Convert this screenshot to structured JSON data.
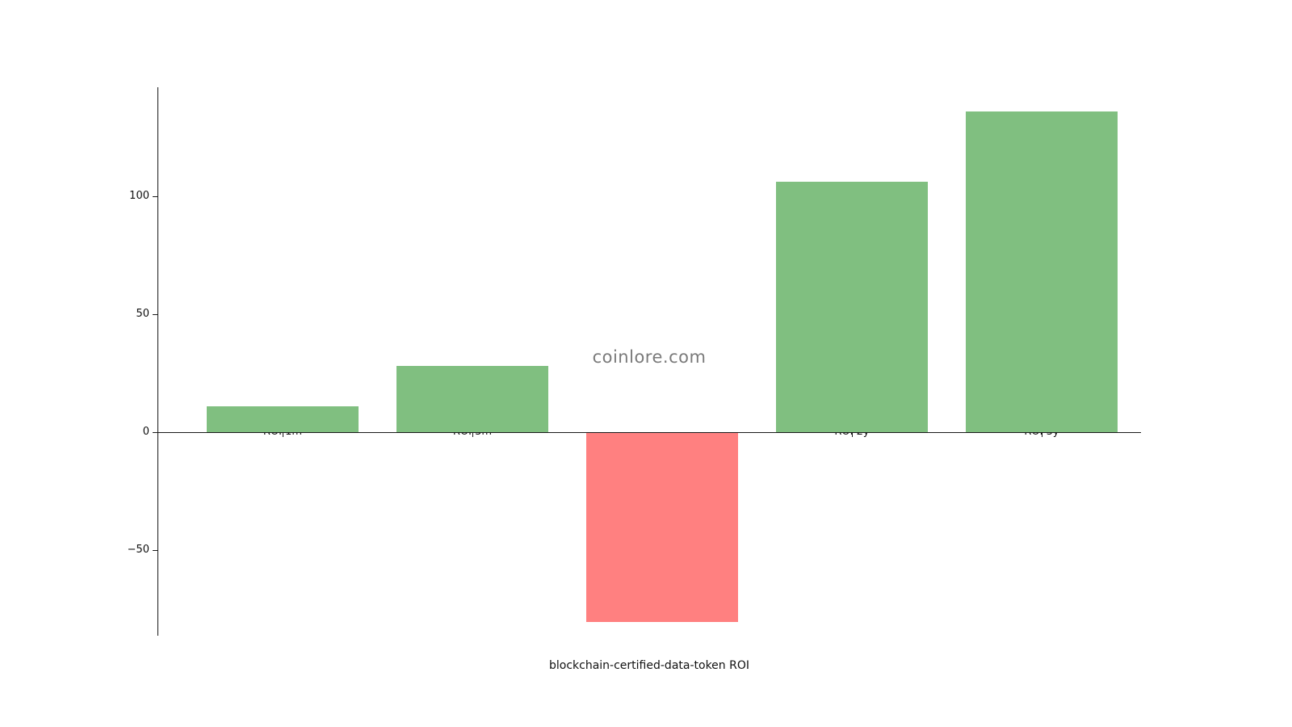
{
  "watermark": {
    "text": "coinlore.com",
    "color": "#7a7a7a"
  },
  "chart_data": {
    "type": "bar",
    "title": "blockchain-certified-data-token ROI",
    "categories": [
      "ROI 1m",
      "ROI 3m",
      "",
      "ROI 2y",
      "ROI 3y"
    ],
    "values": [
      11,
      28,
      -80,
      106,
      136
    ],
    "bar_colors": [
      "#80bf80",
      "#80bf80",
      "#ff8080",
      "#80bf80",
      "#80bf80"
    ],
    "positive_color": "#80bf80",
    "negative_color": "#ff8080",
    "xlabel": "",
    "ylabel": "",
    "ylim": [
      -86,
      146
    ],
    "yticks": [
      {
        "value": 100,
        "label": "100"
      },
      {
        "value": 50,
        "label": "50"
      },
      {
        "value": 0,
        "label": "0"
      },
      {
        "value": -50,
        "label": "−50"
      }
    ],
    "grid": false,
    "legend": null,
    "axis_color": "#1a1a1a"
  }
}
